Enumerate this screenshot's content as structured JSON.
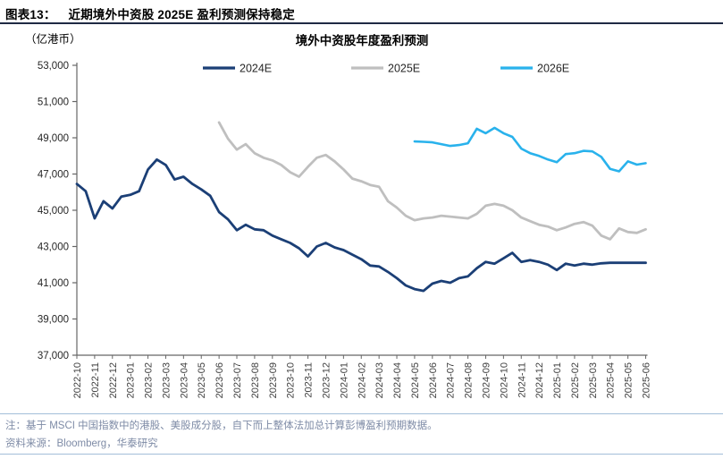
{
  "header": {
    "figure_label": "图表13：",
    "title": "近期境外中资股 2025E 盈利预测保持稳定"
  },
  "footer": {
    "note": "注：基于 MSCI 中国指数中的港股、美股成分股，自下而上整体法加总计算彭博盈利预期数据。",
    "source": "资料来源：Bloomberg，华泰研究"
  },
  "colors": {
    "header_underline": "#1F2A44",
    "separator": "#A3BED9",
    "note_text": "#7E8BA6",
    "axis": "#666666",
    "series_2024e": "#1B3F76",
    "series_2025e": "#BFBFBF",
    "series_2026e": "#29B2EC"
  },
  "chart_data": {
    "type": "line",
    "title": "境外中资股年度盈利预测",
    "unit_label": "（亿港币）",
    "ylabel": "",
    "xlabel": "",
    "ylim": [
      37000,
      53000
    ],
    "ytick_step": 2000,
    "grid": false,
    "legend_position": "top",
    "x_categories": [
      "2022-10",
      "2022-11",
      "2022-12",
      "2023-01",
      "2023-02",
      "2023-03",
      "2023-04",
      "2023-05",
      "2023-06",
      "2023-07",
      "2023-08",
      "2023-09",
      "2023-10",
      "2023-11",
      "2023-12",
      "2024-01",
      "2024-02",
      "2024-03",
      "2024-04",
      "2024-05",
      "2024-06",
      "2024-07",
      "2024-08",
      "2024-09",
      "2024-10",
      "2024-11",
      "2024-12",
      "2025-01",
      "2025-02",
      "2025-03",
      "2025-04",
      "2025-05",
      "2025-06"
    ],
    "series": [
      {
        "name": "2024E",
        "color": "#1B3F76",
        "width": 2.8,
        "start_index": 0,
        "step": 0.5,
        "values": [
          46450,
          46050,
          44550,
          45500,
          45100,
          45750,
          45850,
          46050,
          47250,
          47800,
          47500,
          46700,
          46850,
          46450,
          46150,
          45800,
          44900,
          44500,
          43900,
          44200,
          43950,
          43900,
          43600,
          43400,
          43200,
          42900,
          42450,
          43000,
          43200,
          42950,
          42800,
          42550,
          42300,
          41950,
          41900,
          41600,
          41250,
          40850,
          40650,
          40550,
          40950,
          41100,
          41000,
          41250,
          41350,
          41800,
          42150,
          42050,
          42350,
          42650,
          42150,
          42250,
          42150,
          42000,
          41700,
          42050,
          41950,
          42050,
          42000,
          42070,
          42100,
          42100,
          42100,
          42100,
          42100
        ]
      },
      {
        "name": "2025E",
        "color": "#BFBFBF",
        "width": 2.8,
        "start_index": 8,
        "step": 0.5,
        "values": [
          49850,
          48950,
          48350,
          48650,
          48150,
          47900,
          47750,
          47500,
          47100,
          46850,
          47400,
          47900,
          48050,
          47700,
          47250,
          46750,
          46600,
          46400,
          46300,
          45500,
          45150,
          44700,
          44450,
          44550,
          44600,
          44700,
          44650,
          44600,
          44550,
          44800,
          45250,
          45350,
          45250,
          45000,
          44600,
          44400,
          44200,
          44100,
          43900,
          44050,
          44250,
          44350,
          44150,
          43600,
          43400,
          44000,
          43800,
          43750,
          43950
        ]
      },
      {
        "name": "2026E",
        "color": "#29B2EC",
        "width": 2.6,
        "start_index": 19,
        "step": 0.5,
        "values": [
          48800,
          48780,
          48750,
          48650,
          48550,
          48600,
          48700,
          49500,
          49250,
          49550,
          49250,
          49050,
          48400,
          48150,
          48000,
          47800,
          47650,
          48100,
          48150,
          48280,
          48250,
          47950,
          47280,
          47150,
          47700,
          47520,
          47600
        ]
      }
    ]
  }
}
